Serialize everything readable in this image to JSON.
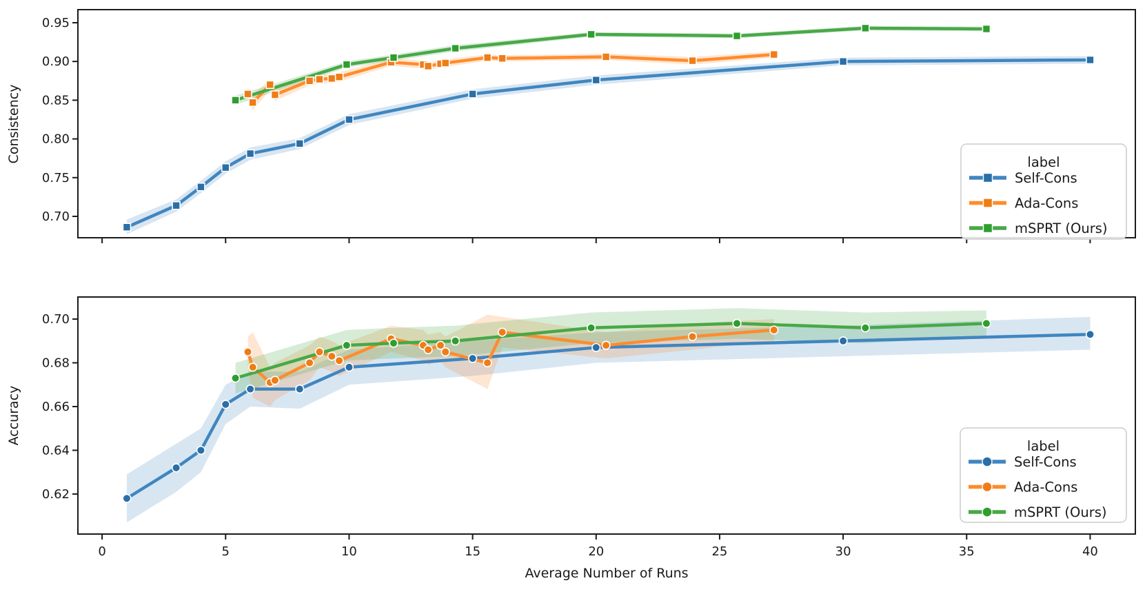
{
  "figure": {
    "background": "#ffffff"
  },
  "legend": {
    "title": "label",
    "entries": [
      {
        "label": "Self-Cons"
      },
      {
        "label": "Ada-Cons"
      },
      {
        "label": "mSPRT (Ours)"
      }
    ]
  },
  "chart_data": [
    {
      "type": "line",
      "ylabel": "Consistency",
      "xlabel": "",
      "marker": "square",
      "grid": false,
      "legend_position": "lower right",
      "xlim": [
        -0.98,
        41.83
      ],
      "ylim": [
        0.6724,
        0.9669
      ],
      "xticks": [
        0,
        5,
        10,
        15,
        20,
        25,
        30,
        35,
        40
      ],
      "xtick_labels": [
        "0",
        "5",
        "10",
        "15",
        "20",
        "25",
        "30",
        "35",
        "40"
      ],
      "show_xtick_labels": false,
      "yticks": [
        0.7,
        0.75,
        0.8,
        0.85,
        0.9,
        0.95
      ],
      "ytick_labels": [
        "0.70",
        "0.75",
        "0.80",
        "0.85",
        "0.90",
        "0.95"
      ],
      "series": [
        {
          "name": "Self-Cons",
          "line_color": "#4086c0",
          "marker_color": "#2a6fa8",
          "band_color": "rgba(60,130,190,0.20)",
          "x": [
            1,
            3,
            4,
            5,
            6,
            8,
            10,
            15,
            20,
            30,
            40
          ],
          "y": [
            0.686,
            0.714,
            0.738,
            0.763,
            0.781,
            0.794,
            0.825,
            0.858,
            0.876,
            0.9,
            0.902
          ],
          "band_upper": [
            0.696,
            0.722,
            0.746,
            0.771,
            0.789,
            0.801,
            0.832,
            0.864,
            0.882,
            0.905,
            0.907
          ],
          "band_lower": [
            0.677,
            0.706,
            0.73,
            0.755,
            0.773,
            0.787,
            0.818,
            0.852,
            0.87,
            0.895,
            0.897
          ]
        },
        {
          "name": "Ada-Cons",
          "line_color": "#ff8c2e",
          "marker_color": "#ef7d17",
          "band_color": "rgba(253,141,48,0.22)",
          "x": [
            5.9,
            6.1,
            6.8,
            7.0,
            8.4,
            8.8,
            9.3,
            9.6,
            11.7,
            13.0,
            13.2,
            13.7,
            13.9,
            15.6,
            16.2,
            20.4,
            23.9,
            27.2
          ],
          "y": [
            0.858,
            0.847,
            0.87,
            0.857,
            0.875,
            0.877,
            0.878,
            0.88,
            0.899,
            0.896,
            0.894,
            0.897,
            0.898,
            0.905,
            0.904,
            0.906,
            0.901,
            0.909
          ],
          "band_upper": [
            0.866,
            0.857,
            0.877,
            0.864,
            0.881,
            0.883,
            0.884,
            0.886,
            0.904,
            0.901,
            0.899,
            0.902,
            0.903,
            0.909,
            0.908,
            0.91,
            0.906,
            0.913
          ],
          "band_lower": [
            0.85,
            0.837,
            0.863,
            0.849,
            0.869,
            0.871,
            0.872,
            0.874,
            0.894,
            0.891,
            0.889,
            0.892,
            0.893,
            0.901,
            0.9,
            0.902,
            0.896,
            0.905
          ]
        },
        {
          "name": "mSPRT (Ours)",
          "line_color": "#48a848",
          "marker_color": "#2f9e2f",
          "band_color": "rgba(70,170,70,0.22)",
          "x": [
            5.4,
            9.9,
            11.8,
            14.3,
            19.8,
            25.7,
            30.9,
            35.8
          ],
          "y": [
            0.85,
            0.896,
            0.905,
            0.917,
            0.935,
            0.933,
            0.943,
            0.942
          ],
          "band_upper": [
            0.856,
            0.9,
            0.909,
            0.921,
            0.938,
            0.936,
            0.946,
            0.945
          ],
          "band_lower": [
            0.844,
            0.892,
            0.901,
            0.913,
            0.932,
            0.93,
            0.94,
            0.939
          ]
        }
      ]
    },
    {
      "type": "line",
      "ylabel": "Accuracy",
      "xlabel": "Average Number of Runs",
      "marker": "circle",
      "grid": false,
      "legend_position": "lower right",
      "xlim": [
        -0.98,
        41.83
      ],
      "ylim": [
        0.6017,
        0.7101
      ],
      "xticks": [
        0,
        5,
        10,
        15,
        20,
        25,
        30,
        35,
        40
      ],
      "xtick_labels": [
        "0",
        "5",
        "10",
        "15",
        "20",
        "25",
        "30",
        "35",
        "40"
      ],
      "show_xtick_labels": true,
      "yticks": [
        0.62,
        0.64,
        0.66,
        0.68,
        0.7
      ],
      "ytick_labels": [
        "0.62",
        "0.64",
        "0.66",
        "0.68",
        "0.70"
      ],
      "series": [
        {
          "name": "Self-Cons",
          "line_color": "#4086c0",
          "marker_color": "#2a6fa8",
          "band_color": "rgba(60,130,190,0.20)",
          "x": [
            1,
            3,
            4,
            5,
            6,
            8,
            10,
            15,
            20,
            30,
            40
          ],
          "y": [
            0.618,
            0.632,
            0.64,
            0.661,
            0.668,
            0.668,
            0.678,
            0.682,
            0.687,
            0.69,
            0.693
          ],
          "band_upper": [
            0.629,
            0.643,
            0.65,
            0.67,
            0.676,
            0.676,
            0.686,
            0.69,
            0.694,
            0.697,
            0.701
          ],
          "band_lower": [
            0.607,
            0.621,
            0.63,
            0.652,
            0.66,
            0.659,
            0.67,
            0.674,
            0.68,
            0.683,
            0.686
          ]
        },
        {
          "name": "Ada-Cons",
          "line_color": "#ff8c2e",
          "marker_color": "#ef7d17",
          "band_color": "rgba(253,141,48,0.22)",
          "x": [
            5.9,
            6.1,
            6.8,
            7.0,
            8.4,
            8.8,
            9.3,
            9.6,
            11.7,
            13.0,
            13.2,
            13.7,
            13.9,
            15.6,
            16.2,
            20.4,
            23.9,
            27.2
          ],
          "y": [
            0.685,
            0.678,
            0.671,
            0.672,
            0.68,
            0.685,
            0.683,
            0.681,
            0.691,
            0.688,
            0.686,
            0.688,
            0.685,
            0.68,
            0.694,
            0.688,
            0.692,
            0.695
          ],
          "band_upper": [
            0.692,
            0.694,
            0.678,
            0.68,
            0.688,
            0.692,
            0.69,
            0.688,
            0.697,
            0.695,
            0.693,
            0.694,
            0.692,
            0.702,
            0.701,
            0.694,
            0.698,
            0.7
          ],
          "band_lower": [
            0.678,
            0.664,
            0.66,
            0.663,
            0.672,
            0.678,
            0.676,
            0.674,
            0.685,
            0.681,
            0.679,
            0.681,
            0.678,
            0.668,
            0.687,
            0.682,
            0.686,
            0.69
          ]
        },
        {
          "name": "mSPRT (Ours)",
          "line_color": "#48a848",
          "marker_color": "#2f9e2f",
          "band_color": "rgba(70,170,70,0.22)",
          "x": [
            5.4,
            9.9,
            11.8,
            14.3,
            19.8,
            25.7,
            30.9,
            35.8
          ],
          "y": [
            0.673,
            0.688,
            0.689,
            0.69,
            0.696,
            0.698,
            0.696,
            0.698
          ],
          "band_upper": [
            0.68,
            0.695,
            0.696,
            0.697,
            0.703,
            0.705,
            0.703,
            0.704
          ],
          "band_lower": [
            0.666,
            0.681,
            0.682,
            0.683,
            0.689,
            0.691,
            0.689,
            0.692
          ]
        }
      ]
    }
  ]
}
